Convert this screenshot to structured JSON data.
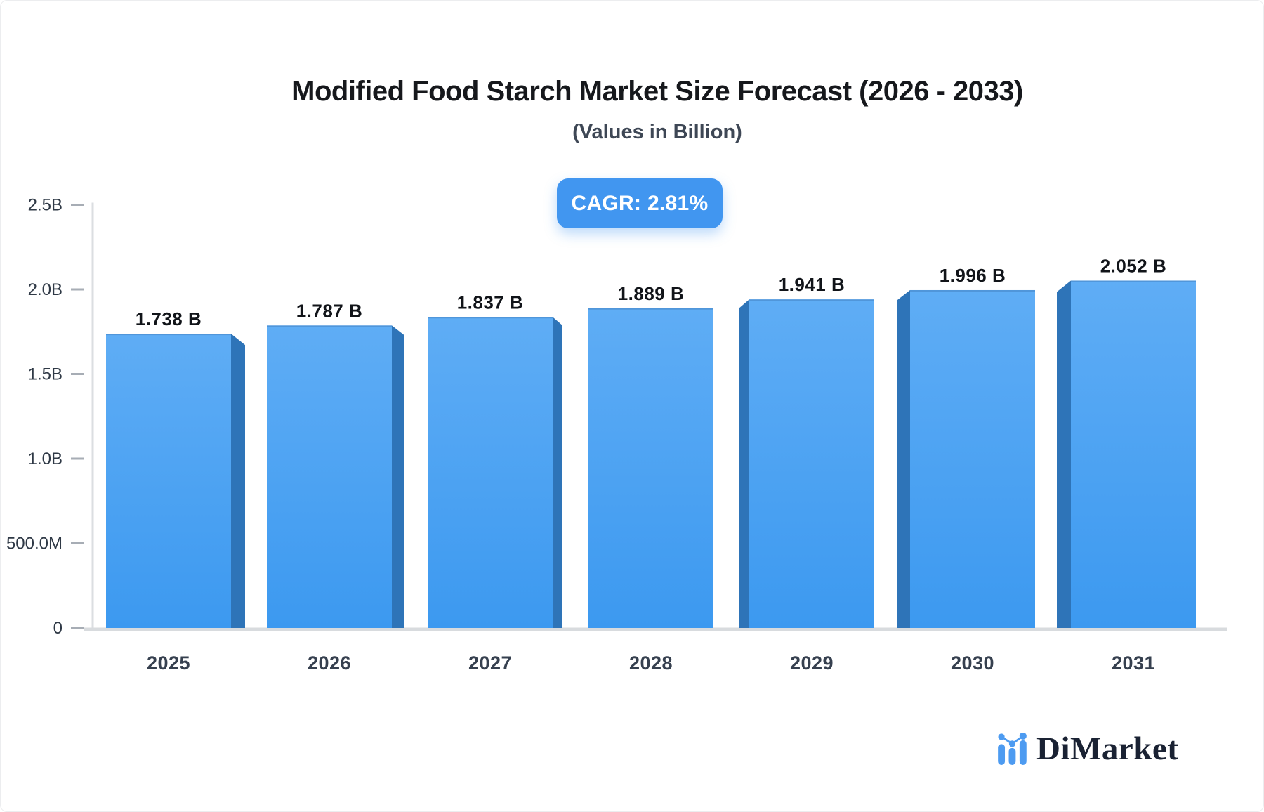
{
  "header": {
    "title": "Modified Food Starch Market Size Forecast (2026 - 2033)",
    "subtitle": "(Values in Billion)"
  },
  "badge": {
    "label": "CAGR: 2.81%",
    "bg": "#4196F0"
  },
  "chart_data": {
    "type": "bar",
    "title": "Modified Food Starch Market Size Forecast (2026 - 2033)",
    "subtitle": "(Values in Billion)",
    "categories": [
      "2025",
      "2026",
      "2027",
      "2028",
      "2029",
      "2030",
      "2031"
    ],
    "values": [
      1.738,
      1.787,
      1.837,
      1.889,
      1.941,
      1.996,
      2.052
    ],
    "value_labels": [
      "1.738 B",
      "1.787 B",
      "1.837 B",
      "1.889 B",
      "1.941 B",
      "1.996 B",
      "2.052 B"
    ],
    "y_ticks": [
      {
        "value": 0,
        "label": "0"
      },
      {
        "value": 0.5,
        "label": "500.0M"
      },
      {
        "value": 1.0,
        "label": "1.0B"
      },
      {
        "value": 1.5,
        "label": "1.5B"
      },
      {
        "value": 2.0,
        "label": "2.0B"
      },
      {
        "value": 2.5,
        "label": "2.5B"
      }
    ],
    "ylim": [
      0,
      2.5
    ],
    "xlabel": "",
    "ylabel": "",
    "grid": false,
    "legend": "none",
    "colors": {
      "bar_top": "#5FADF5",
      "bar_bottom": "#3C99F0",
      "bar_edge": "#4E93D6",
      "bar_side": "#2E74B8",
      "axis": "#DBDEE1",
      "baseline": "#D8DBDE",
      "tick": "#A7ADB5",
      "tick_label": "#2F3946",
      "x_label": "#36404F",
      "value_label": "#111419"
    }
  },
  "footer": {
    "brand": "DiMarket",
    "logo_icon": "bar-chart-logo-icon",
    "brand_color": "#1A2233",
    "icon_color": "#4D9BF1"
  }
}
